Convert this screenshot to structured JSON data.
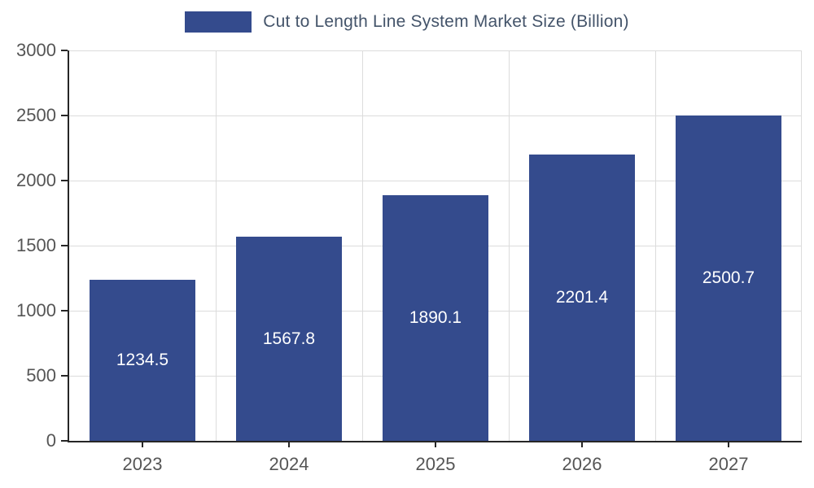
{
  "chart_data": {
    "type": "bar",
    "title": "Cut to Length Line System Market Size (Billion)",
    "categories": [
      "2023",
      "2024",
      "2025",
      "2026",
      "2027"
    ],
    "values": [
      1234.5,
      1567.8,
      1890.1,
      2201.4,
      2500.7
    ],
    "value_labels": [
      "1234.5",
      "1567.8",
      "1890.1",
      "2201.4",
      "2500.7"
    ],
    "ylim": [
      0,
      3000
    ],
    "yticks": [
      0,
      500,
      1000,
      1500,
      2000,
      2500,
      3000
    ],
    "ytick_labels": [
      "0",
      "500",
      "1000",
      "1500",
      "2000",
      "2500",
      "3000"
    ],
    "grid": true,
    "legend_position": "top",
    "colors": {
      "bar": "#344B8D",
      "bar_value_text": "#FFFFFF",
      "grid": "#DCDCDC",
      "axis": "#262626",
      "tick_label": "#555555",
      "title_text": "#44546A"
    }
  }
}
